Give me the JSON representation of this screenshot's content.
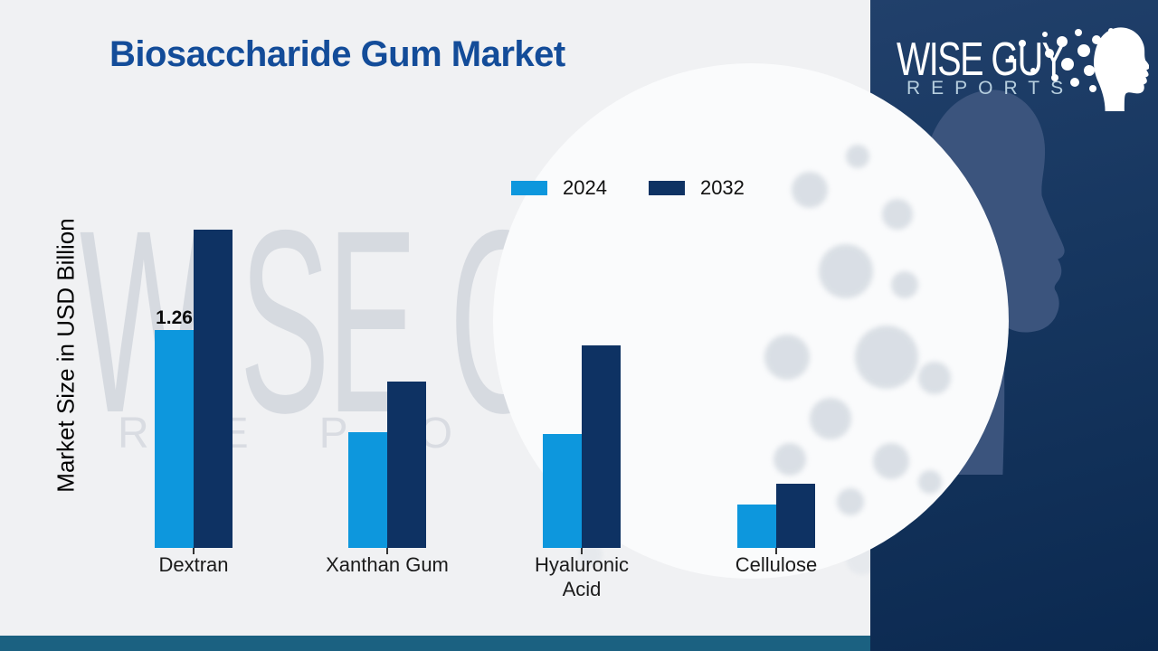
{
  "page": {
    "background_color": "#f0f1f3",
    "bottom_bar_color": "#1b6181"
  },
  "title": "Biosaccharide Gum Market",
  "title_color": "#134c99",
  "watermark": {
    "line1": "WISE GUY",
    "line2": "REPORTS",
    "color": "#d6dae0"
  },
  "brand_panel": {
    "logo_line1": "WISE GUY",
    "logo_line2": "REPORTS",
    "panel_color_top": "#21406b",
    "panel_color_bottom": "#0b2950",
    "face_silhouette_color": "#3b547d",
    "head_icon": "head-profile-with-dots"
  },
  "chart_data": {
    "type": "bar",
    "title": "Biosaccharide Gum Market",
    "xlabel": "",
    "ylabel": "Market Size in USD Billion",
    "categories": [
      "Dextran",
      "Xanthan Gum",
      "Hyaluronic Acid",
      "Cellulose"
    ],
    "series": [
      {
        "name": "2024",
        "color": "#0d97dd",
        "values": [
          1.26,
          0.67,
          0.66,
          0.25
        ]
      },
      {
        "name": "2032",
        "color": "#0e3263",
        "values": [
          1.84,
          0.96,
          1.17,
          0.37
        ]
      }
    ],
    "bar_value_labels": [
      {
        "category_index": 0,
        "series_index": 0,
        "text": "1.26"
      }
    ],
    "legend": {
      "position": "top-center",
      "items": [
        {
          "label": "2024",
          "color": "#0d97dd"
        },
        {
          "label": "2032",
          "color": "#0e3263"
        }
      ]
    },
    "ylim": [
      0,
      2.0
    ],
    "grid": false,
    "y_axis_ticks_visible": false
  }
}
